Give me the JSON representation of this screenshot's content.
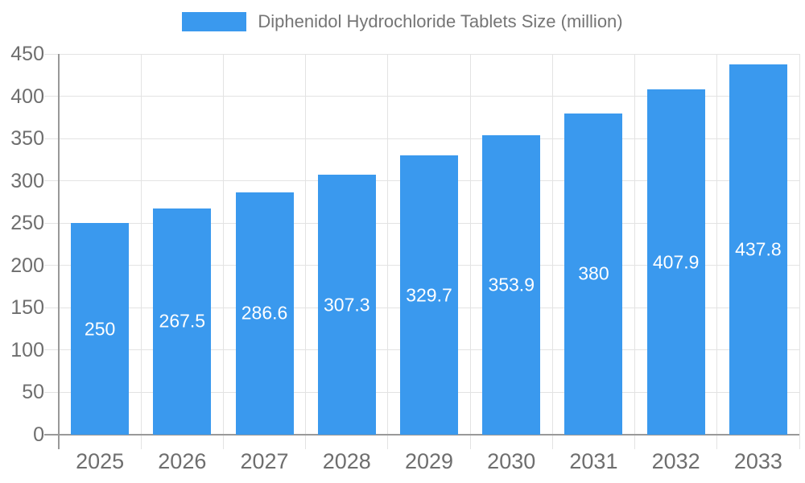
{
  "chart_data": {
    "type": "bar",
    "title": "",
    "categories": [
      "2025",
      "2026",
      "2027",
      "2028",
      "2029",
      "2030",
      "2031",
      "2032",
      "2033"
    ],
    "series": [
      {
        "name": "Diphenidol Hydrochloride Tablets Size (million)",
        "values": [
          250,
          267.5,
          286.6,
          307.3,
          329.7,
          353.9,
          380,
          407.9,
          437.8
        ]
      }
    ],
    "value_labels": [
      "250",
      "267.5",
      "286.6",
      "307.3",
      "329.7",
      "353.9",
      "380",
      "407.9",
      "437.8"
    ],
    "xlabel": "",
    "ylabel": "",
    "ylim": [
      0,
      450
    ],
    "y_ticks": [
      0,
      50,
      100,
      150,
      200,
      250,
      300,
      350,
      400,
      450
    ],
    "grid": "on",
    "legend_position": "top-center",
    "colors": {
      "bar": "#3A99EE",
      "grid_line": "#E3E3E3",
      "axis_line": "#999999",
      "tick_label": "#6E6E6E",
      "legend_text": "#757575",
      "bar_value_text": "#FFFFFF",
      "background": "#FFFFFF"
    }
  },
  "legend": {
    "label": "Diphenidol Hydrochloride Tablets Size (million)"
  }
}
